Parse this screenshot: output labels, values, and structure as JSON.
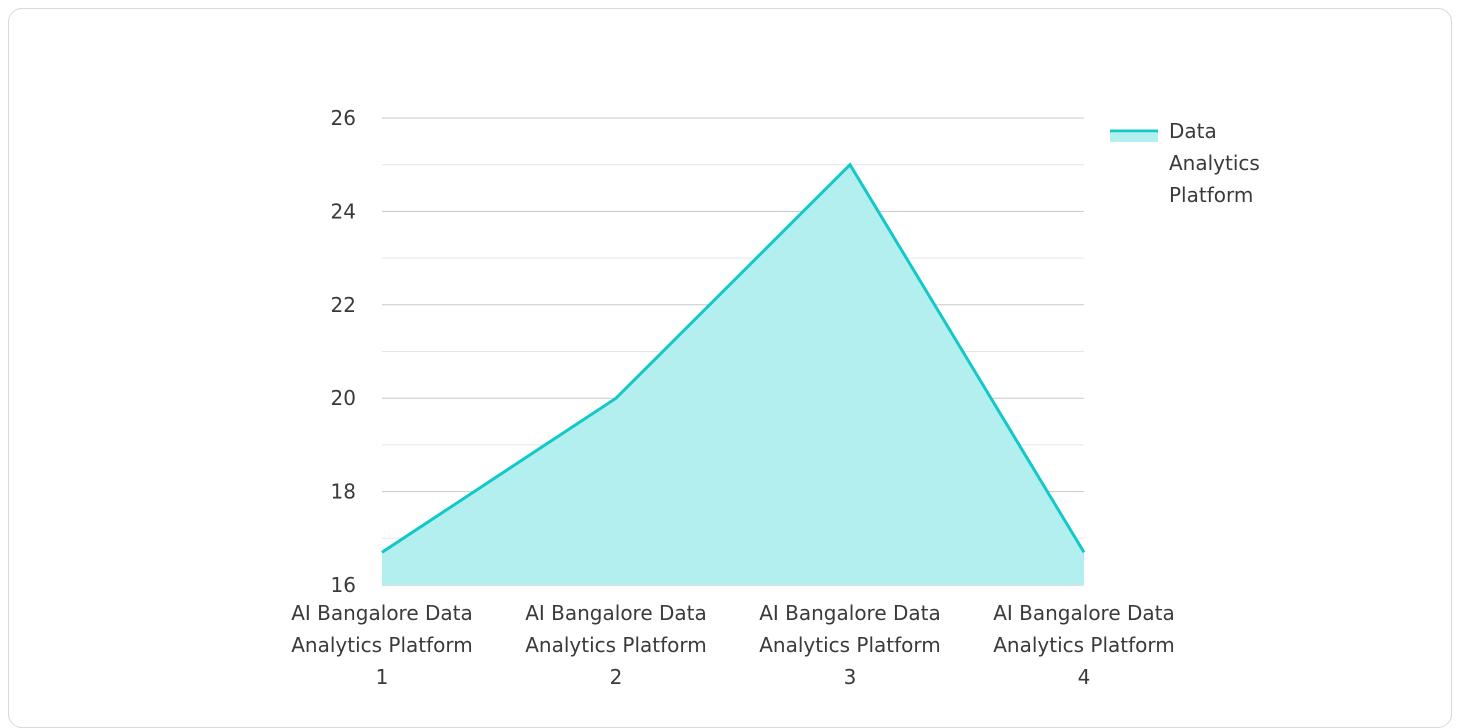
{
  "chart_data": {
    "type": "area",
    "categories": [
      [
        "AI Bangalore Data",
        "Analytics Platform",
        "1"
      ],
      [
        "AI Bangalore Data",
        "Analytics Platform",
        "2"
      ],
      [
        "AI Bangalore Data",
        "Analytics Platform",
        "3"
      ],
      [
        "AI Bangalore Data",
        "Analytics Platform",
        "4"
      ]
    ],
    "series": [
      {
        "name": [
          "Data",
          "Analytics",
          "Platform"
        ],
        "values": [
          16.7,
          20,
          25,
          16.7
        ],
        "line_color": "#13c8c8",
        "fill_color": "#b2efee"
      }
    ],
    "ylim": [
      16,
      26
    ],
    "y_ticks": [
      16,
      18,
      20,
      22,
      24,
      26
    ],
    "minor_grid": true,
    "legend_position": "top-right",
    "title": "",
    "xlabel": "",
    "ylabel": ""
  }
}
